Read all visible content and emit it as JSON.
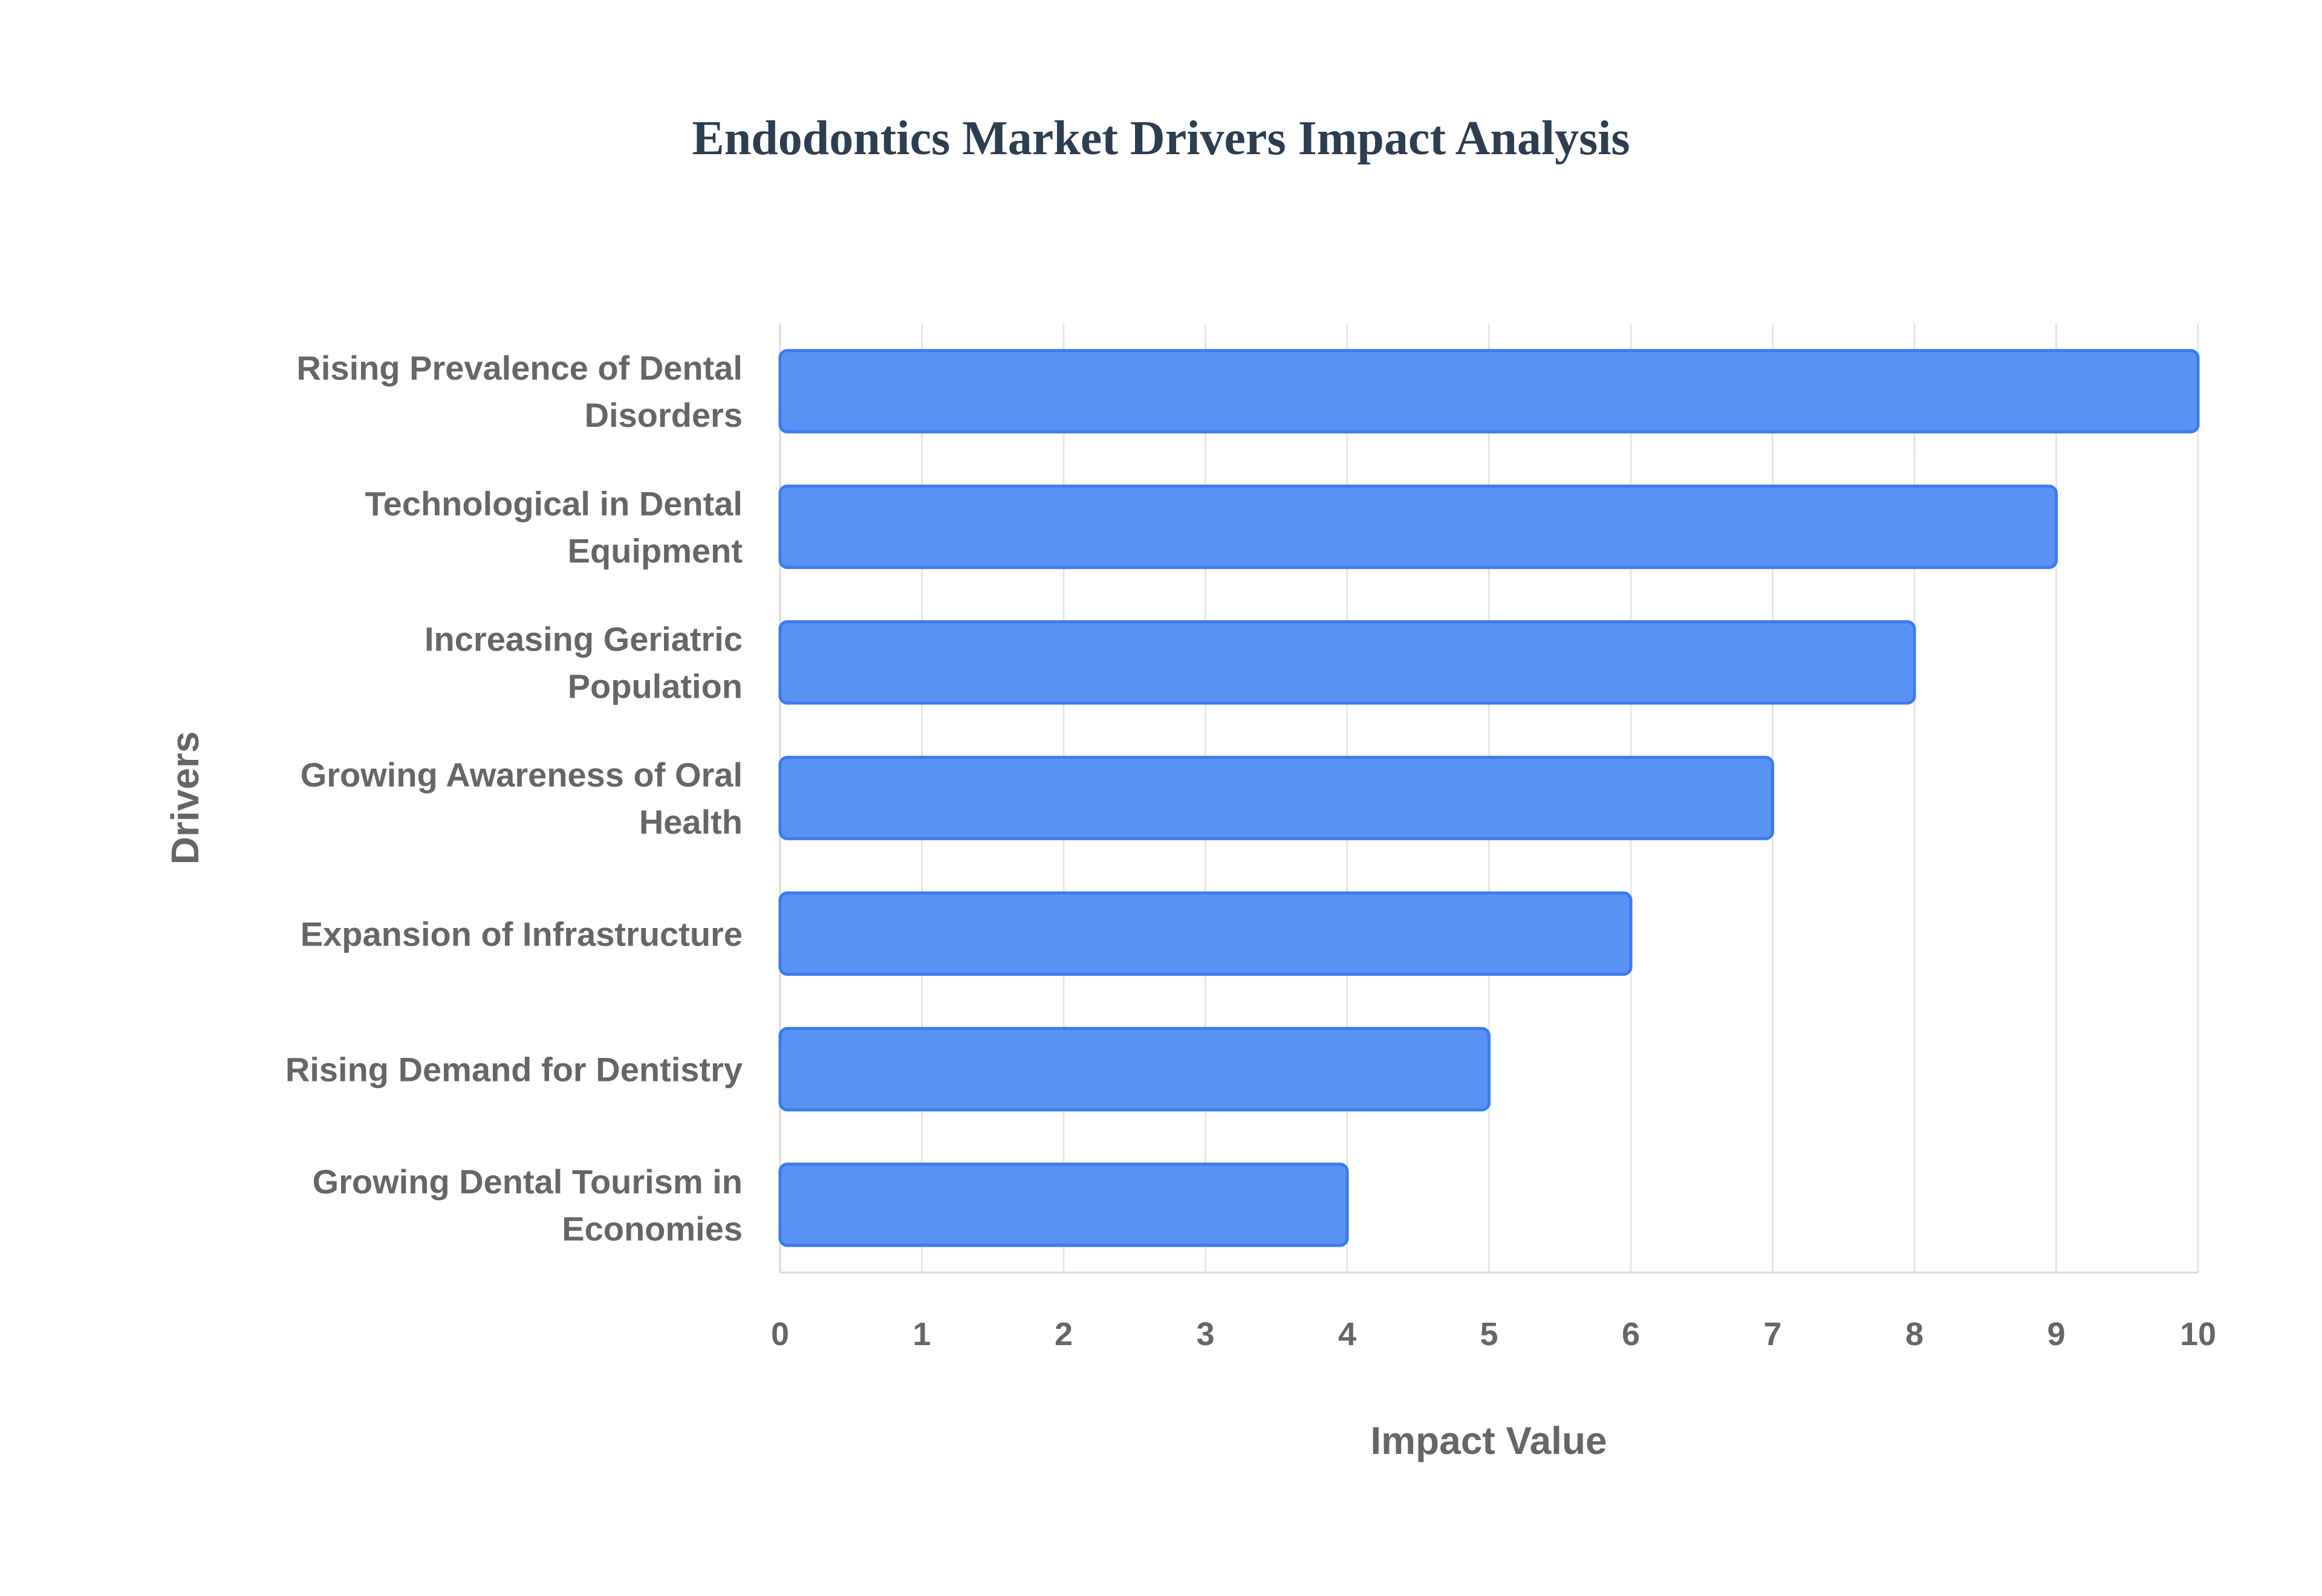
{
  "chart_data": {
    "type": "bar",
    "orientation": "horizontal",
    "title": "Endodontics Market Drivers Impact Analysis",
    "xlabel": "Impact Value",
    "ylabel": "Drivers",
    "xlim": [
      0,
      10
    ],
    "xticks": [
      "0",
      "1",
      "2",
      "3",
      "4",
      "5",
      "6",
      "7",
      "8",
      "9",
      "10"
    ],
    "grid": true,
    "legend": "none",
    "categories": [
      [
        "Rising Prevalence of Dental",
        "Disorders"
      ],
      [
        "Technological in Dental",
        "Equipment"
      ],
      [
        "Increasing Geriatric",
        "Population"
      ],
      [
        "Growing Awareness of Oral",
        "Health"
      ],
      [
        "Expansion of Infrastructure"
      ],
      [
        "Rising Demand for Dentistry"
      ],
      [
        "Growing Dental Tourism in",
        "Economies"
      ]
    ],
    "values": [
      10,
      9,
      8,
      7,
      6,
      5,
      4
    ],
    "colors": {
      "bar_fill": "#5a93f5",
      "bar_stroke": "#3b7bf0"
    }
  }
}
